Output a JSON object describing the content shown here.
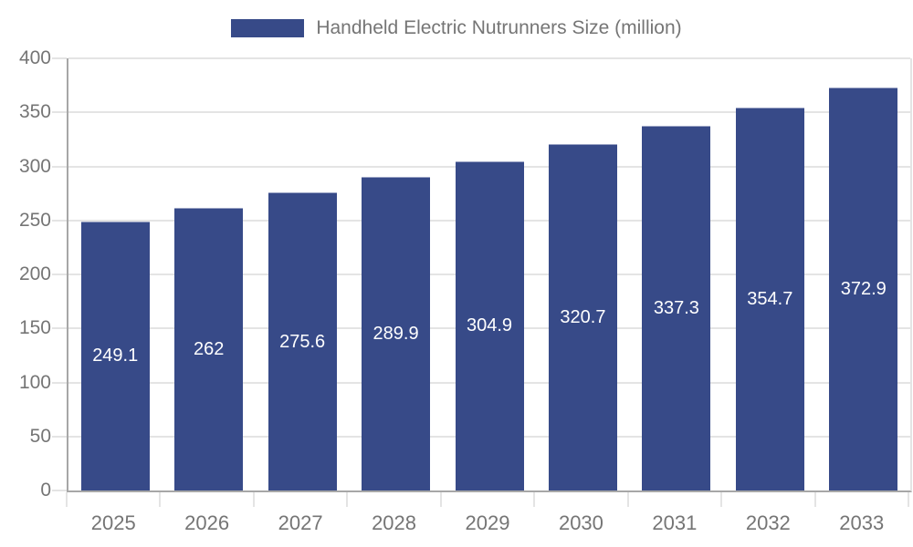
{
  "chart_data": {
    "type": "bar",
    "title": "Handheld Electric Nutrunners Size (million)",
    "legend": "Handheld Electric Nutrunners Size (million)",
    "legend_position": "top",
    "categories": [
      "2025",
      "2026",
      "2027",
      "2028",
      "2029",
      "2030",
      "2031",
      "2032",
      "2033"
    ],
    "values": [
      249.1,
      262,
      275.6,
      289.9,
      304.9,
      320.7,
      337.3,
      354.7,
      372.9
    ],
    "value_labels": [
      "249.1",
      "262",
      "275.6",
      "289.9",
      "304.9",
      "320.7",
      "337.3",
      "354.7",
      "372.9"
    ],
    "xlabel": "",
    "ylabel": "",
    "ylim": [
      0,
      400
    ],
    "yticks": [
      0,
      50,
      100,
      150,
      200,
      250,
      300,
      350,
      400
    ],
    "grid": true,
    "colors": {
      "bar": "#374a88",
      "bar_edge": "#9aa3c4",
      "grid": "#e4e4e4",
      "axis": "#a7a7a7",
      "text": "#757575",
      "value_label": "#ffffff",
      "background": "#ffffff"
    }
  }
}
